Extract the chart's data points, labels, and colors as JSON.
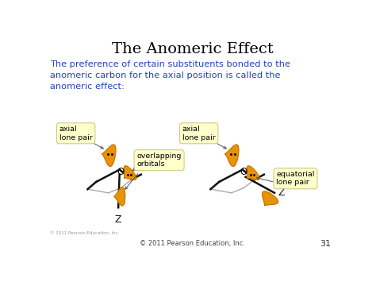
{
  "title": "The Anomeric Effect",
  "body_text": "The preference of certain substituents bonded to the\nanomeric carbon for the axial position is called the\nanomeric effect:",
  "title_color": "#000000",
  "body_color": "#2244bb",
  "bg_color": "#ffffff",
  "footer_text": "© 2011 Pearson Education, Inc.",
  "page_number": "31",
  "copyright_small": "© 2011 Pearson Education, Inc.",
  "label_box_color": "#ffffcc",
  "label_box_edge": "#cccc88",
  "orange_color": "#e8920a",
  "orange_edge": "#c07000"
}
